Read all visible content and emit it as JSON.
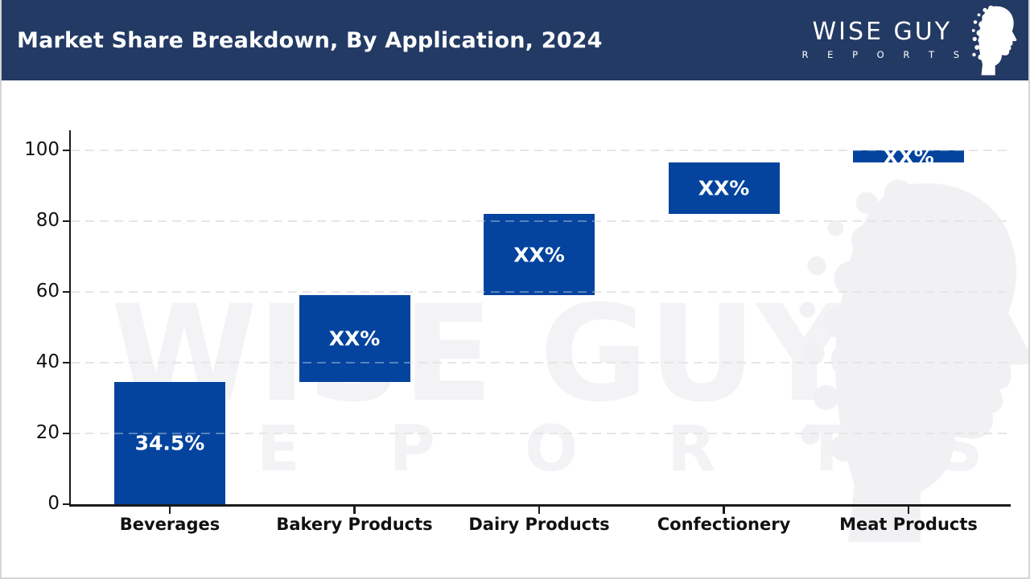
{
  "header": {
    "title": "Market Share Breakdown, By Application, 2024",
    "logo": {
      "line1": "WISE GUY",
      "line2": "R E P O R T S"
    }
  },
  "watermark": {
    "line1": "WISE GUY",
    "line2": "R E P O R T S"
  },
  "chart_data": {
    "type": "bar",
    "variant": "waterfall",
    "title": "Market Share Breakdown, By Application, 2024",
    "categories": [
      "Beverages",
      "Bakery Products",
      "Dairy Products",
      "Confectionery",
      "Meat Products"
    ],
    "series": [
      {
        "name": "Market Share",
        "segments": [
          {
            "category": "Beverages",
            "start": 0,
            "end": 34.5,
            "label": "34.5%"
          },
          {
            "category": "Bakery Products",
            "start": 34.5,
            "end": 59,
            "label": "XX%"
          },
          {
            "category": "Dairy Products",
            "start": 59,
            "end": 82,
            "label": "XX%"
          },
          {
            "category": "Confectionery",
            "start": 82,
            "end": 96.5,
            "label": "XX%"
          },
          {
            "category": "Meat Products",
            "start": 96.5,
            "end": 100,
            "label": "XX%"
          }
        ]
      }
    ],
    "xlabel": "",
    "ylabel": "",
    "ylim": [
      0,
      100
    ],
    "yticks": [
      0,
      20,
      40,
      60,
      80,
      100
    ],
    "grid": "horizontal-dashed",
    "legend": null,
    "colors": {
      "bar": "#04449E",
      "bar_label": "#FFFFFF",
      "axis": "#1A1A1A",
      "gridline": "#D9D9D9",
      "header_bg": "#223A64",
      "header_text": "#FFFFFF",
      "watermark": "#F2F2F5"
    }
  }
}
